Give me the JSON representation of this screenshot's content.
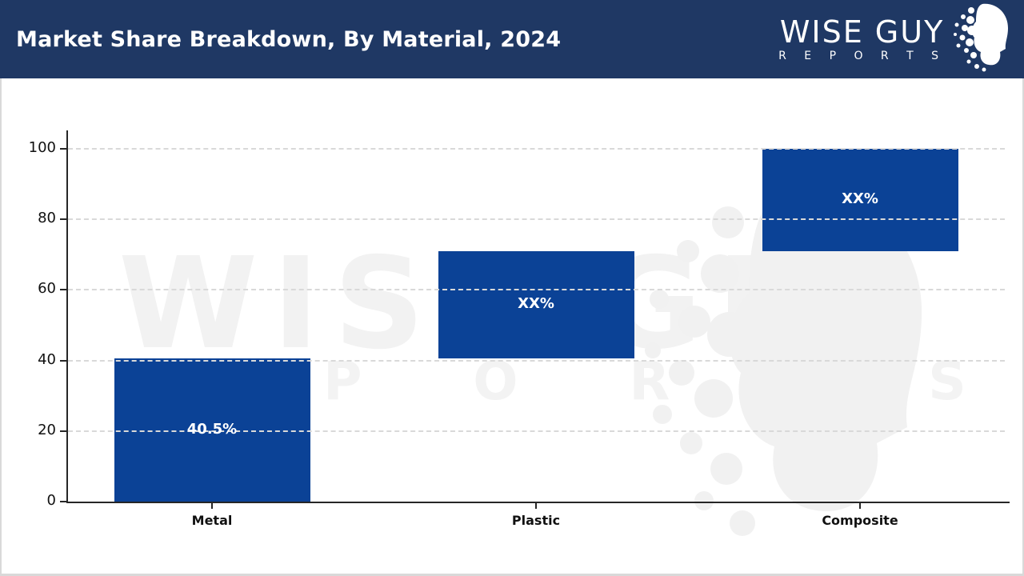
{
  "header": {
    "title": "Market Share Breakdown, By Material, 2024",
    "logo": {
      "line1": "WISE GUY",
      "line2": "R E P O R T S"
    }
  },
  "watermark": {
    "line1": "WISE GU",
    "line2": "E P O R T S"
  },
  "chart_data": {
    "type": "bar",
    "subtype": "waterfall",
    "title": "Market Share Breakdown, By Material, 2024",
    "categories": [
      "Metal",
      "Plastic",
      "Composite"
    ],
    "segments": [
      {
        "category": "Metal",
        "start": 0,
        "end": 40.5,
        "label": "40.5%"
      },
      {
        "category": "Plastic",
        "start": 40.5,
        "end": 71,
        "label": "XX%"
      },
      {
        "category": "Composite",
        "start": 71,
        "end": 100,
        "label": "XX%"
      }
    ],
    "xlabel": "",
    "ylabel": "",
    "ylim": [
      0,
      100
    ],
    "yticks": [
      0,
      20,
      40,
      60,
      80,
      100
    ],
    "grid": "horizontal-dashed-over-bars",
    "legend": "none",
    "colors": {
      "bar": "#0b4296",
      "bar_label": "#ffffff",
      "grid": "#d9d9d9",
      "axis": "#262626",
      "tick_label": "#111111"
    }
  },
  "colors": {
    "header_bg": "#1f3864",
    "page_bg": "#ffffff",
    "border": "#d9d9d9",
    "watermark": "#f2f2f2"
  }
}
